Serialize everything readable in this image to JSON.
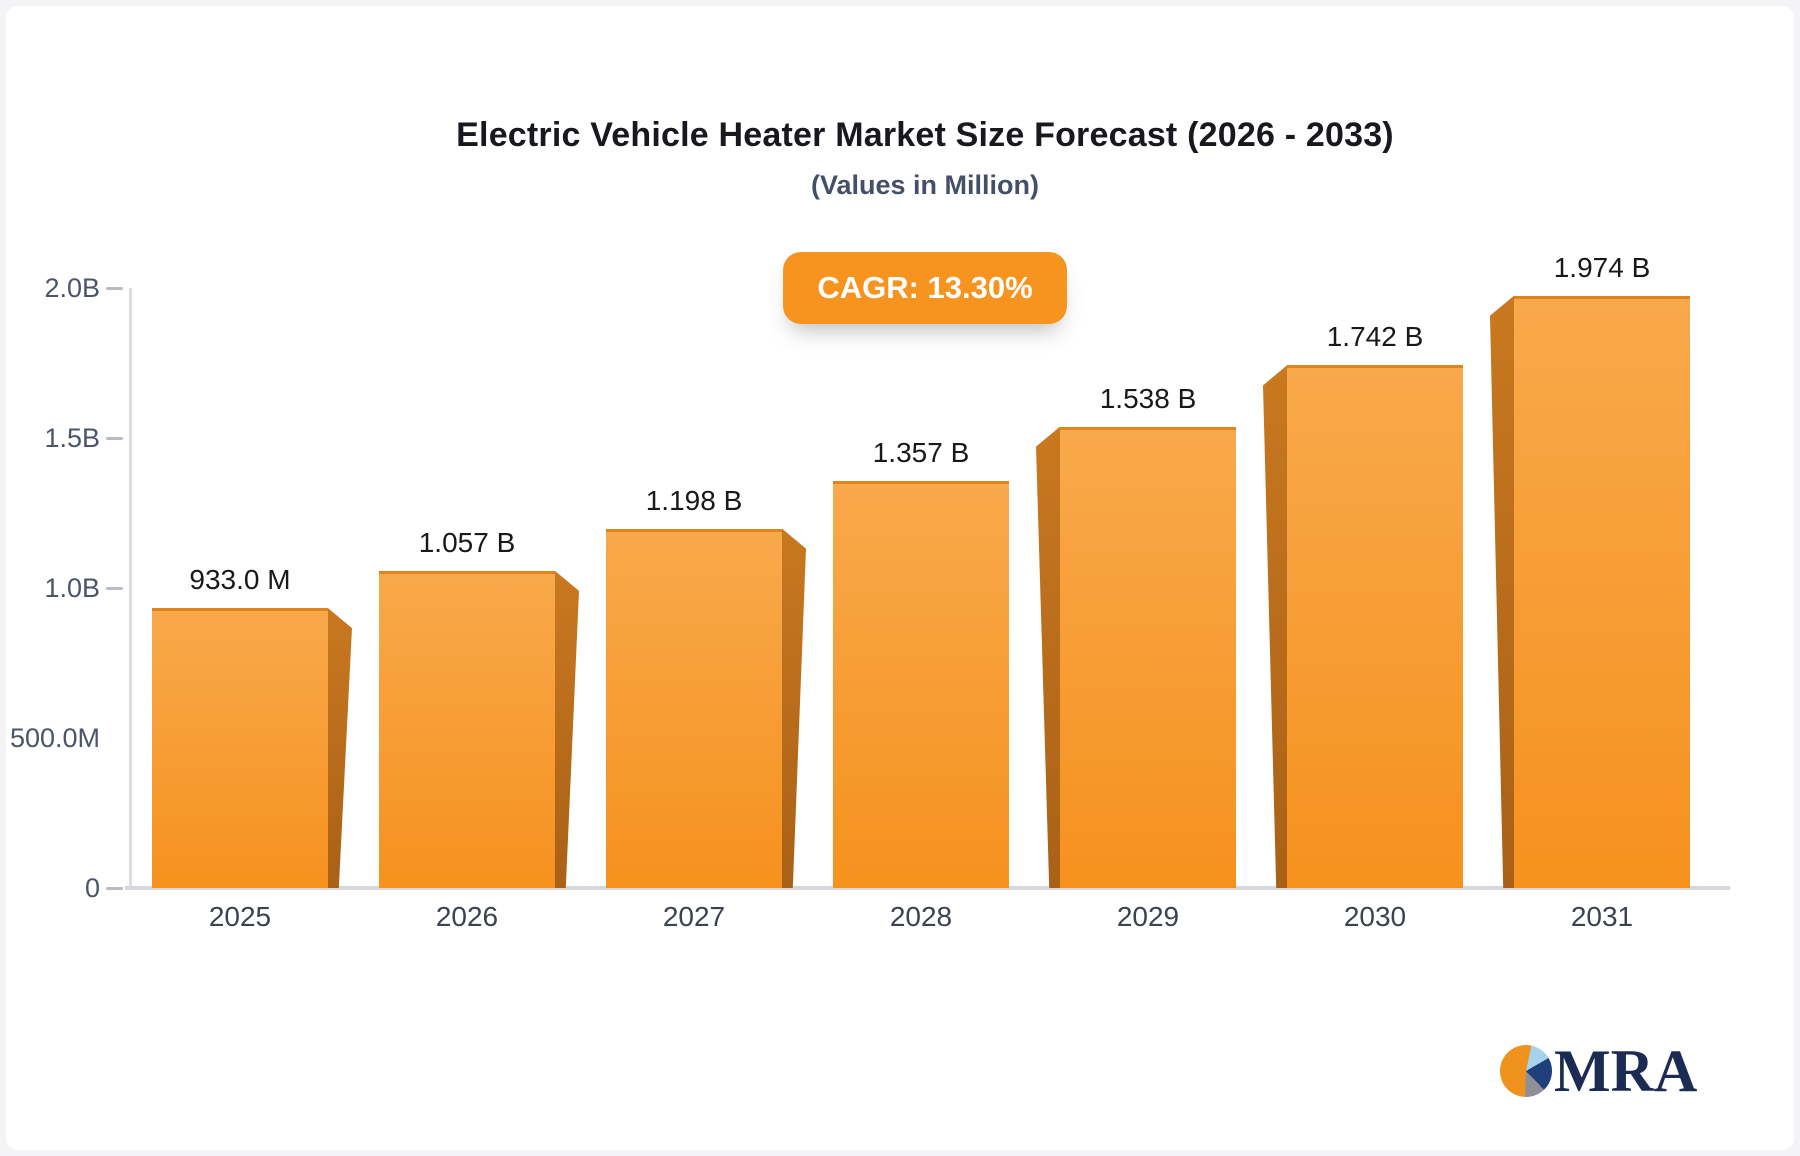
{
  "page": {
    "background": "#f4f4f6",
    "card_background": "#ffffff"
  },
  "header": {
    "title": "Electric Vehicle Heater Market Size Forecast (2026 - 2033)",
    "subtitle": "(Values in Million)"
  },
  "cagr_badge": {
    "label": "CAGR: 13.30%",
    "background": "#f7941f",
    "text_color": "#ffffff"
  },
  "chart_data": {
    "type": "bar",
    "title": "Electric Vehicle Heater Market Size Forecast (2026 - 2033)",
    "subtitle": "(Values in Million)",
    "categories": [
      "2025",
      "2026",
      "2027",
      "2028",
      "2029",
      "2030",
      "2031"
    ],
    "values_in_millions": [
      933.0,
      1057,
      1198,
      1357,
      1538,
      1742,
      1974
    ],
    "bar_labels": [
      "933.0 M",
      "1.057 B",
      "1.198 B",
      "1.357 B",
      "1.538 B",
      "1.742 B",
      "1.974 B"
    ],
    "ylim_millions": [
      0,
      2000
    ],
    "yticks": [
      {
        "label": "2.0B",
        "value_millions": 2000,
        "tick_mark": true
      },
      {
        "label": "1.5B",
        "value_millions": 1500,
        "tick_mark": true
      },
      {
        "label": "1.0B",
        "value_millions": 1000,
        "tick_mark": true
      },
      {
        "label": "500.0M",
        "value_millions": 500,
        "tick_mark": false
      },
      {
        "label": "0",
        "value_millions": 0,
        "tick_mark": true
      }
    ],
    "grid": false,
    "legend": false,
    "bar_color_top": "#f8a94b",
    "bar_color_bottom": "#f6911e",
    "bar_side_color": "#bf6f1b",
    "bar_top_edge_color": "#e0851b"
  },
  "logo": {
    "text": "MRA",
    "text_color": "#1b2b52",
    "pie_slice_colors": {
      "orange": "#f0921e",
      "light_blue": "#a6d2ee",
      "navy": "#20407c",
      "gray": "#8f9097"
    }
  }
}
